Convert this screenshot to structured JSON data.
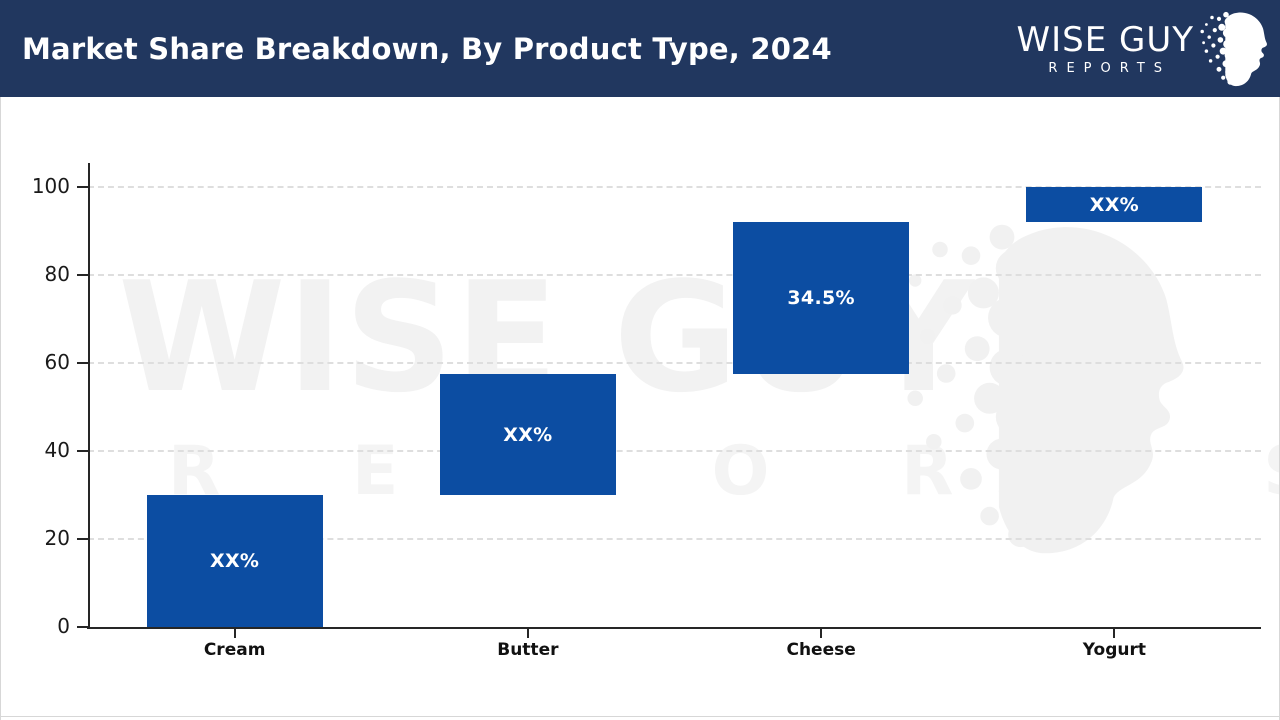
{
  "header": {
    "title": "Market Share Breakdown, By Product Type, 2024",
    "bg_color": "#21375f",
    "logo": {
      "line1": "WISE GUY",
      "line2": "REPORTS"
    }
  },
  "watermark": {
    "line1": "WISE GUY",
    "line2": "R E P O R T S"
  },
  "chart_data": {
    "type": "bar",
    "subtype": "floating-stacked-segments",
    "title": "Market Share Breakdown, By Product Type, 2024",
    "categories": [
      "Cream",
      "Butter",
      "Cheese",
      "Yogurt"
    ],
    "segments": [
      {
        "category": "Cream",
        "start": 0,
        "end": 30,
        "label": "XX%"
      },
      {
        "category": "Butter",
        "start": 30,
        "end": 57.5,
        "label": "XX%"
      },
      {
        "category": "Cheese",
        "start": 57.5,
        "end": 92,
        "label": "34.5%"
      },
      {
        "category": "Yogurt",
        "start": 92,
        "end": 100,
        "label": "XX%"
      }
    ],
    "yticks": [
      0,
      20,
      40,
      60,
      80,
      100
    ],
    "ylim": [
      0,
      105.5
    ],
    "xlabel": "",
    "ylabel": "",
    "bar_color": "#0c4da2",
    "bar_label_color": "#ffffff",
    "grid": "dashed-horizontal",
    "legend": "none"
  }
}
